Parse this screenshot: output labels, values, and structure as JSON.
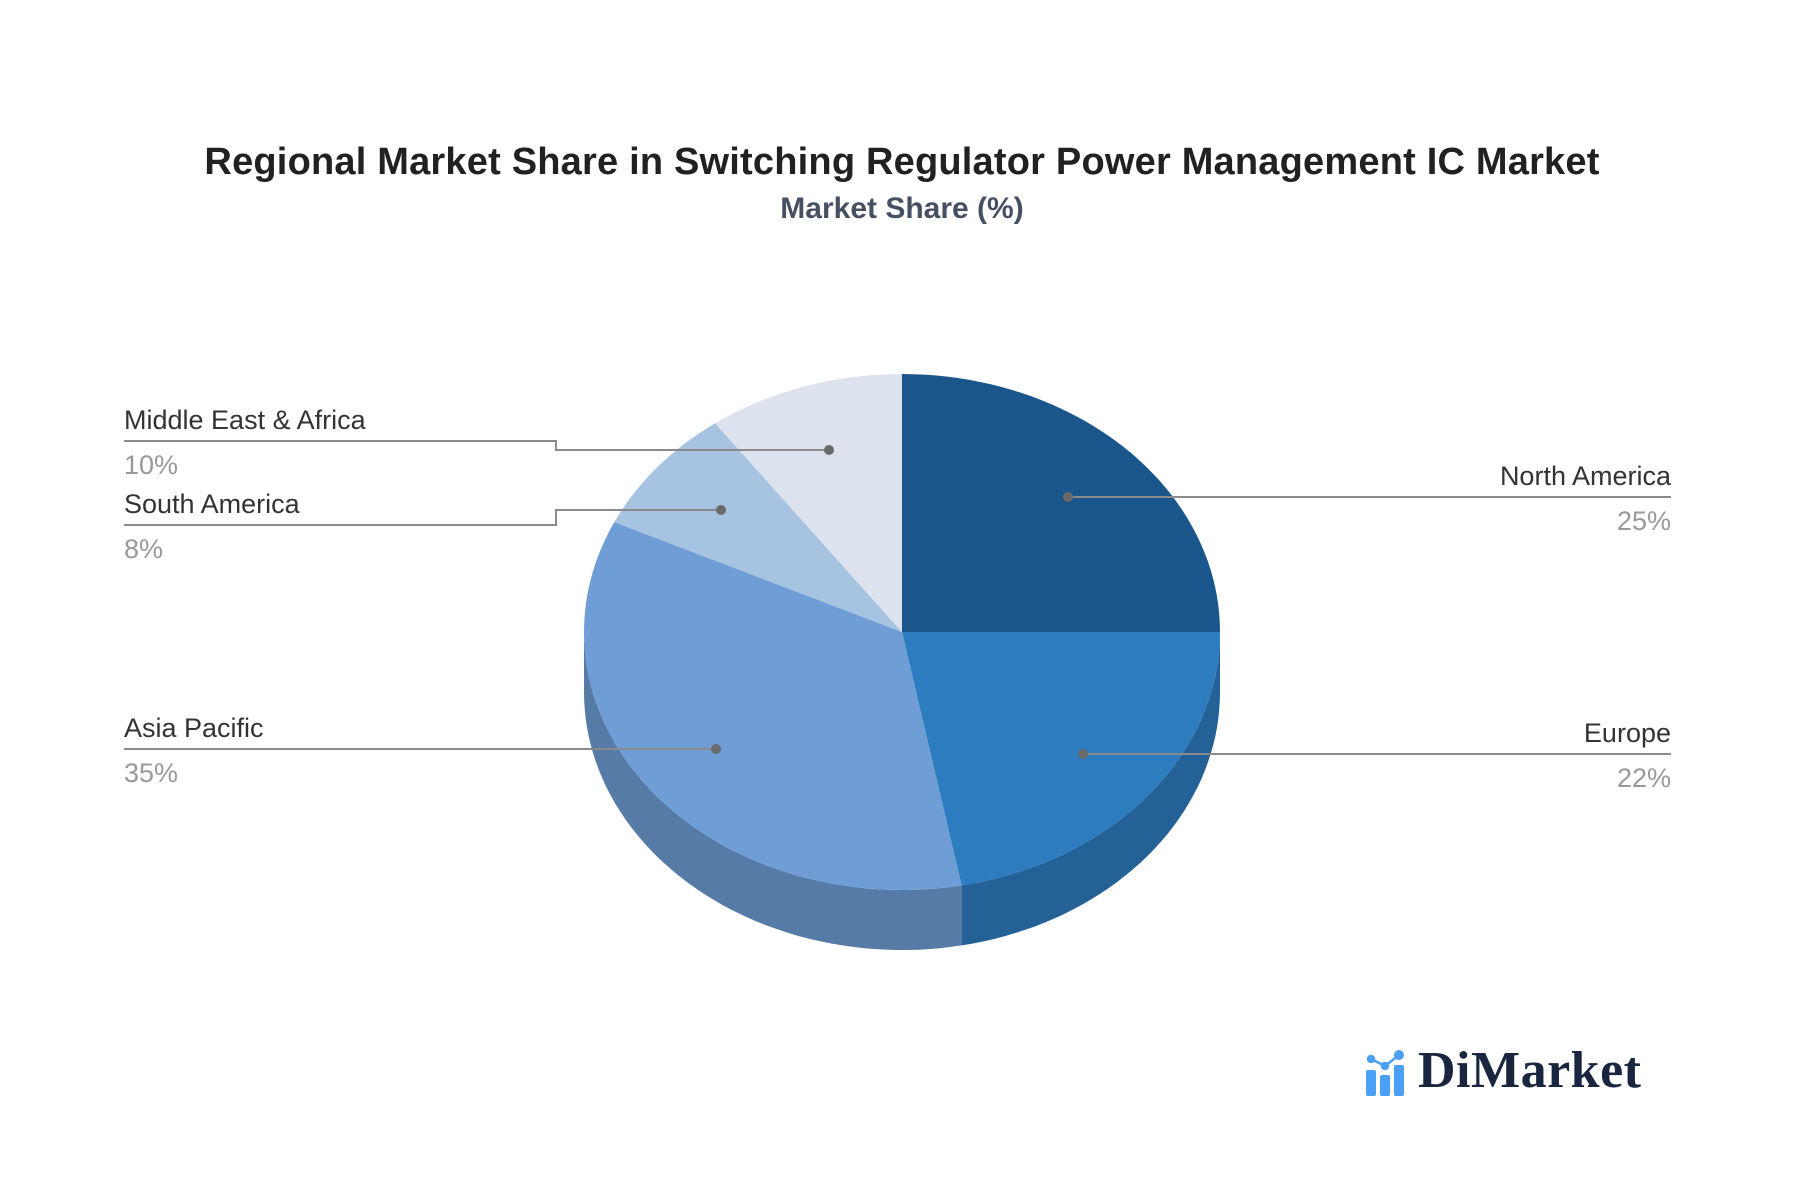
{
  "title": "Regional Market Share in Switching Regulator Power Management IC Market",
  "subtitle": "Market Share (%)",
  "brand": {
    "name": "DiMarket"
  },
  "chart_data": {
    "type": "pie",
    "style": "3d-depth",
    "title": "Regional Market Share in Switching Regulator Power Management IC Market",
    "subtitle": "Market Share (%)",
    "unit": "%",
    "start_angle_deg": 0,
    "direction": "clockwise",
    "legend_position": "callout-labels",
    "slices": [
      {
        "label": "North America",
        "value": 25,
        "display": "25%",
        "color": "#1a568c"
      },
      {
        "label": "Europe",
        "value": 22,
        "display": "22%",
        "color": "#2d7cc0"
      },
      {
        "label": "Asia Pacific",
        "value": 35,
        "display": "35%",
        "color": "#6f9ed6"
      },
      {
        "label": "South America",
        "value": 8,
        "display": "8%",
        "color": "#a6c3e1"
      },
      {
        "label": "Middle East & Africa",
        "value": 10,
        "display": "10%",
        "color": "#dce3ee"
      }
    ],
    "colors": {
      "label_text": "#333333",
      "percent_text": "#999999",
      "callout_line": "#8a8a8a",
      "callout_dot": "#6a6a6a",
      "title_text": "#212121",
      "subtitle_text": "#475063",
      "brand_blue": "#4aa0f5",
      "brand_navy": "#1a2540"
    }
  }
}
